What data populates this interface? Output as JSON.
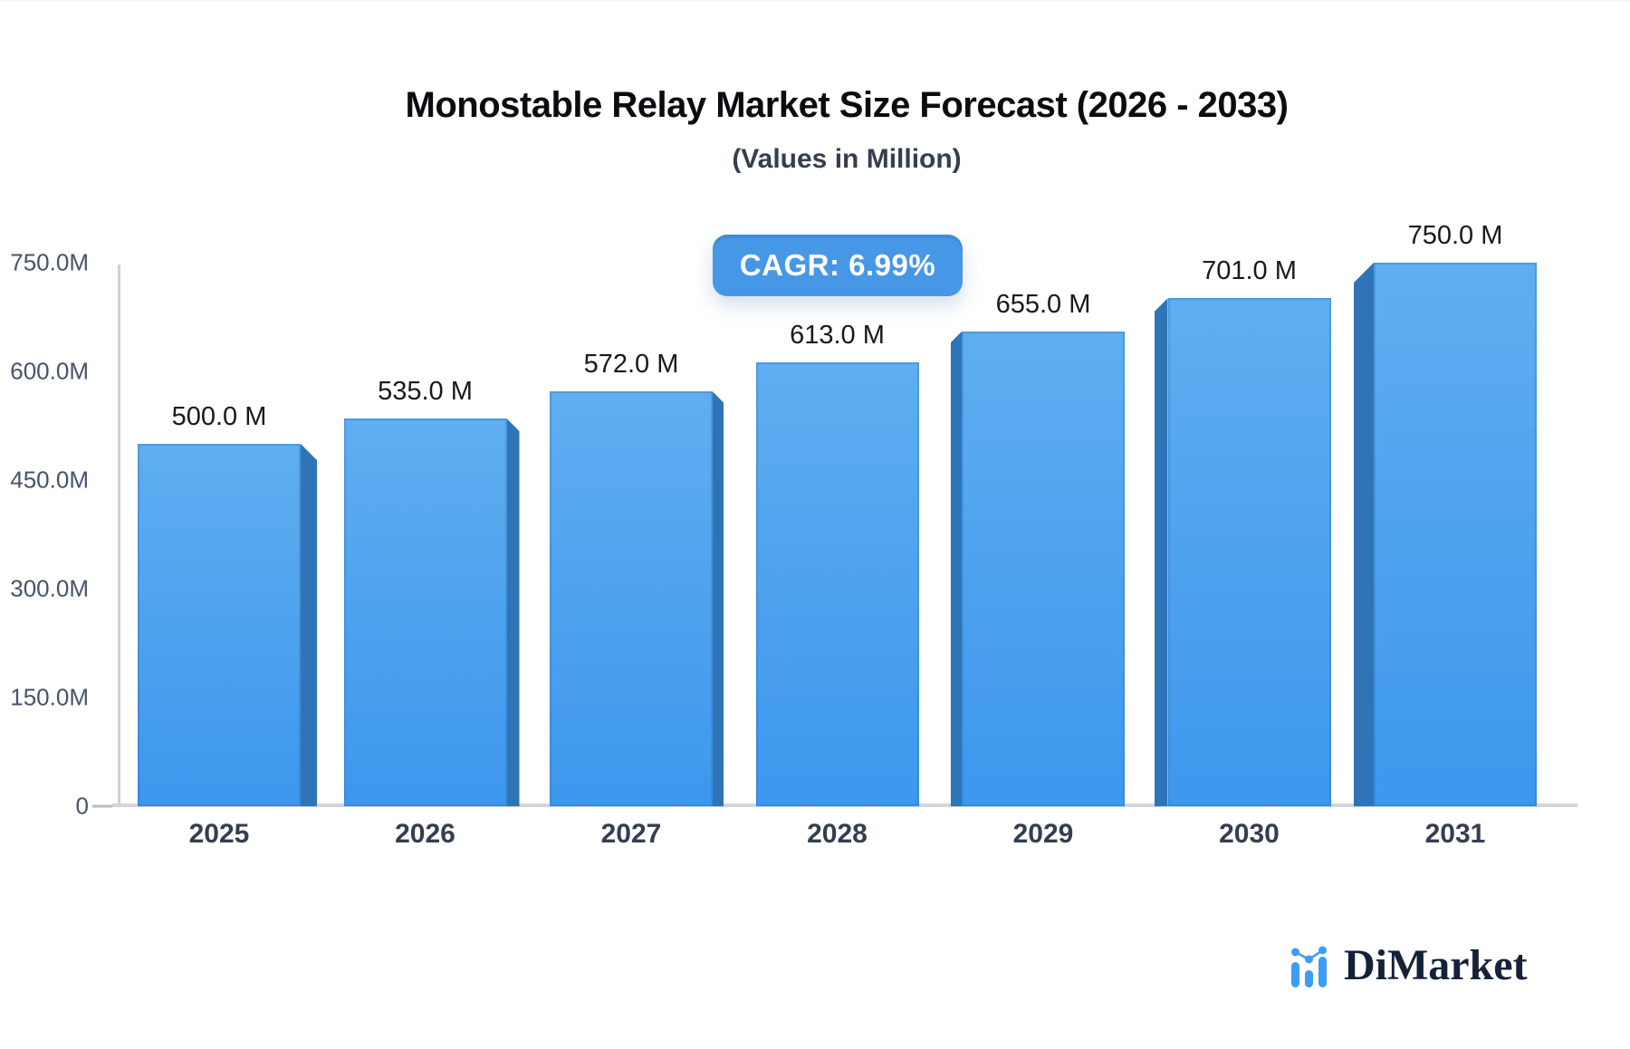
{
  "header": {
    "title": "Monostable Relay Market Size Forecast (2026 - 2033)",
    "subtitle": "(Values in Million)"
  },
  "badge": {
    "text": "CAGR: 6.99%"
  },
  "logo": {
    "text": "DiMarket",
    "icon": "bar-chart-trend-icon"
  },
  "colors": {
    "bar_face_top": "#5FAEF0",
    "bar_face_bottom": "#3D97ED",
    "bar_side": "#2F74B6",
    "badge_bg": "#4697E5",
    "axis_line": "#D3D5DB",
    "value_label": "#17191F",
    "axis_label": "#46536B",
    "logo_blue": "#3D9CF6",
    "logo_navy": "#152039"
  },
  "chart_data": {
    "type": "bar",
    "title": "Monostable Relay Market Size Forecast (2026 - 2033)",
    "subtitle": "(Values in Million)",
    "unit": "Million",
    "cagr": "6.99%",
    "categories": [
      "2025",
      "2026",
      "2027",
      "2028",
      "2029",
      "2030",
      "2031"
    ],
    "values": [
      500,
      535,
      572,
      613,
      655,
      701,
      750
    ],
    "bar_labels": [
      "500.0 M",
      "535.0 M",
      "572.0 M",
      "613.0 M",
      "655.0 M",
      "701.0 M",
      "750.0 M"
    ],
    "xlabel": "",
    "ylabel": "",
    "ylim": [
      0,
      750
    ],
    "yticks": [
      {
        "label": "750.0M",
        "value": 750
      },
      {
        "label": "600.0M",
        "value": 600
      },
      {
        "label": "450.0M",
        "value": 450
      },
      {
        "label": "300.0M",
        "value": 300
      },
      {
        "label": "150.0M",
        "value": 150
      },
      {
        "label": "0",
        "value": 0
      }
    ],
    "grid": false,
    "legend": "none"
  }
}
